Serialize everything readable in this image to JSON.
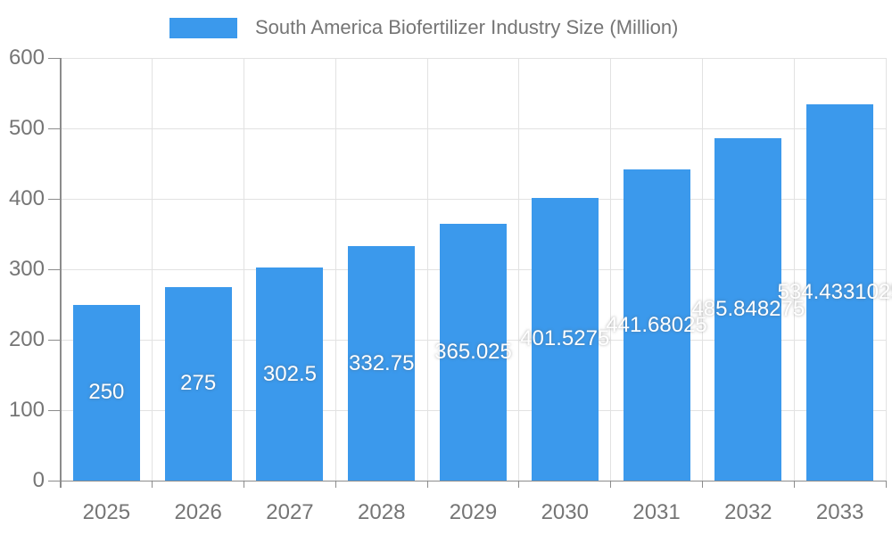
{
  "legend": {
    "label": "South America Biofertilizer Industry Size (Million)"
  },
  "chart_data": {
    "type": "bar",
    "title": "South America Biofertilizer Industry Size (Million)",
    "categories": [
      "2025",
      "2026",
      "2027",
      "2028",
      "2029",
      "2030",
      "2031",
      "2032",
      "2033"
    ],
    "values": [
      250,
      275,
      302.5,
      332.75,
      365.025,
      401.5275,
      441.68025,
      485.848275,
      534.4331025
    ],
    "xlabel": "",
    "ylabel": "",
    "ylim": [
      0,
      600
    ],
    "yticks": [
      0,
      100,
      200,
      300,
      400,
      500,
      600
    ],
    "grid": true,
    "legend_position": "top-center",
    "bar_label_position": "inside-center",
    "bar_label_color": "#ffffff"
  },
  "colors": {
    "bar": "#3b99ec",
    "axis": "#8c8c8c",
    "grid": "#e2e2e2",
    "text": "#757575"
  }
}
